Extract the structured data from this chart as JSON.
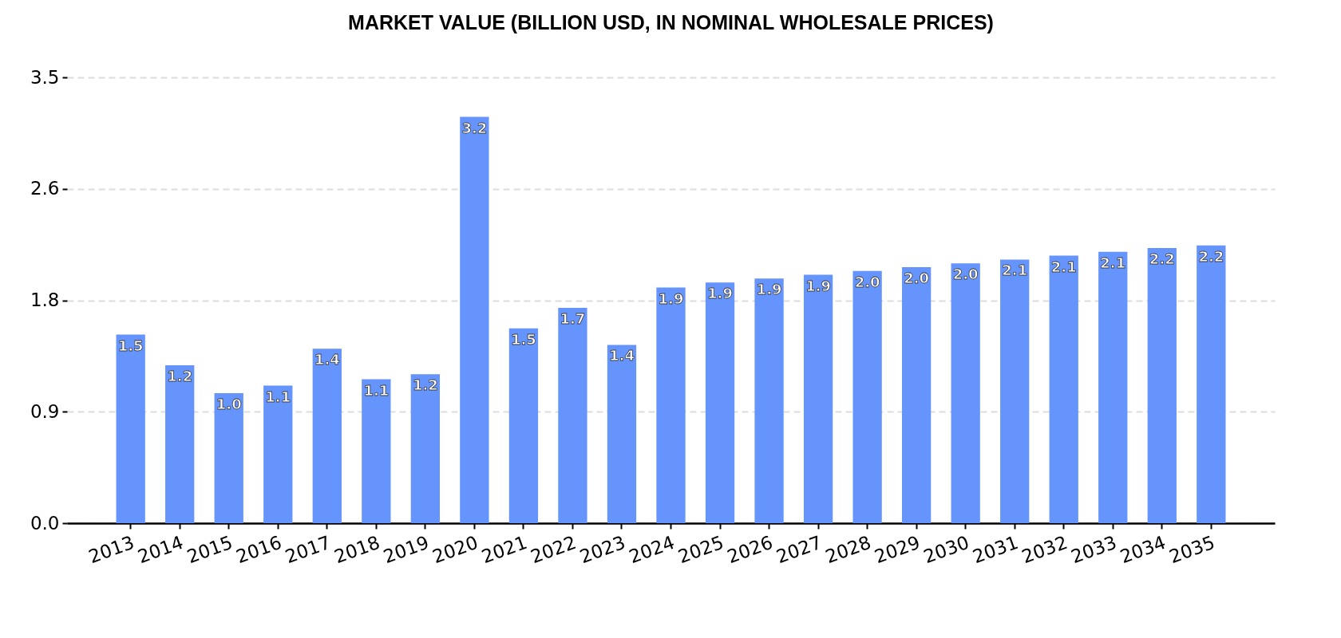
{
  "chart_data": {
    "type": "bar",
    "title": "MARKET VALUE (BILLION USD, IN NOMINAL WHOLESALE PRICES)",
    "categories": [
      "2013",
      "2014",
      "2015",
      "2016",
      "2017",
      "2018",
      "2019",
      "2020",
      "2021",
      "2022",
      "2023",
      "2024",
      "2025",
      "2026",
      "2027",
      "2028",
      "2029",
      "2030",
      "2031",
      "2032",
      "2033",
      "2034",
      "2035"
    ],
    "values": [
      1.48,
      1.24,
      1.02,
      1.08,
      1.37,
      1.13,
      1.17,
      3.19,
      1.53,
      1.69,
      1.4,
      1.85,
      1.89,
      1.92,
      1.95,
      1.98,
      2.01,
      2.04,
      2.07,
      2.1,
      2.13,
      2.16,
      2.18
    ],
    "value_labels": [
      "1.5",
      "1.2",
      "1.0",
      "1.1",
      "1.4",
      "1.1",
      "1.2",
      "3.2",
      "1.5",
      "1.7",
      "1.4",
      "1.9",
      "1.9",
      "1.9",
      "1.9",
      "2.0",
      "2.0",
      "2.0",
      "2.1",
      "2.1",
      "2.1",
      "2.2",
      "2.2"
    ],
    "color": "#6694fd",
    "ylim": [
      0,
      3.5
    ],
    "yticks": [
      {
        "value": 0,
        "label": "0.0"
      },
      {
        "value": 0.875,
        "label": "0.9"
      },
      {
        "value": 1.75,
        "label": "1.8"
      },
      {
        "value": 2.625,
        "label": "2.6"
      },
      3.5
    ],
    "grid": "y"
  }
}
